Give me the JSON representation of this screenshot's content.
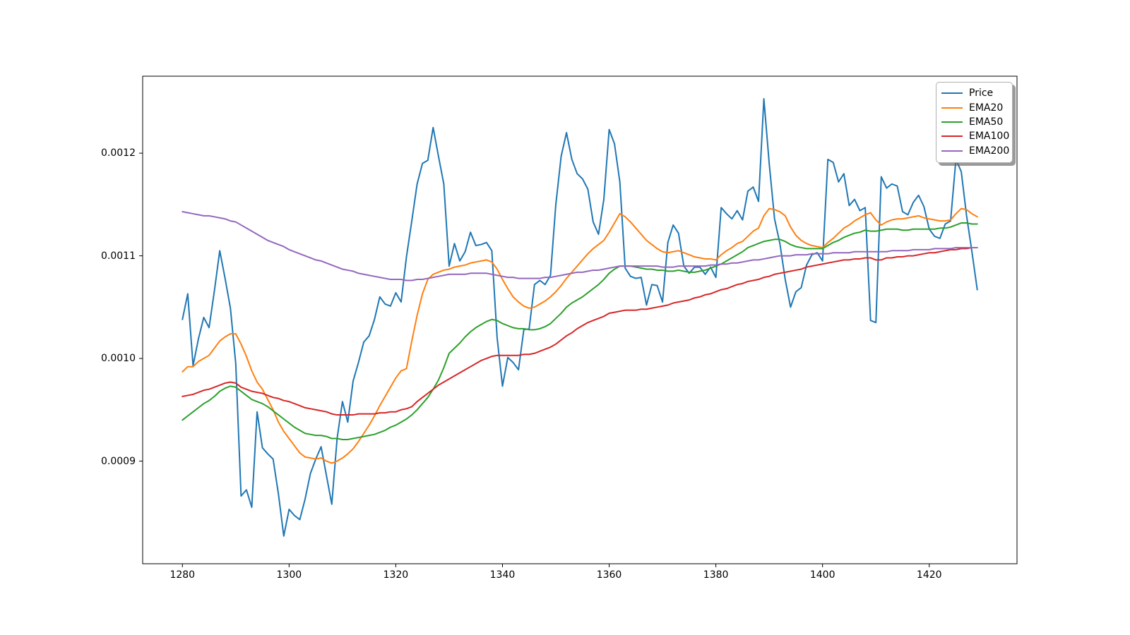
{
  "figure": {
    "background": "#ffffff",
    "spine_color": "#000000",
    "tick_color": "#000000"
  },
  "legend": {
    "position": "upper right",
    "entries": [
      {
        "label": "Price",
        "color": "#1f77b4"
      },
      {
        "label": "EMA20",
        "color": "#ff7f0e"
      },
      {
        "label": "EMA50",
        "color": "#2ca02c"
      },
      {
        "label": "EMA100",
        "color": "#d62728"
      },
      {
        "label": "EMA200",
        "color": "#9467bd"
      }
    ]
  },
  "chart_data": {
    "type": "line",
    "title": "",
    "xlabel": "",
    "ylabel": "",
    "grid": false,
    "x_start": 1280,
    "x_step": 1,
    "xlim": [
      1272.55,
      1436.45
    ],
    "ylim": [
      0.0008,
      0.001275
    ],
    "x_ticks": [
      1280,
      1300,
      1320,
      1340,
      1360,
      1380,
      1400,
      1420
    ],
    "y_ticks": [
      {
        "value": 0.0009,
        "label": "0.0009"
      },
      {
        "value": 0.001,
        "label": "0.0010"
      },
      {
        "value": 0.0011,
        "label": "0.0011"
      },
      {
        "value": 0.0012,
        "label": "0.0012"
      }
    ],
    "series": [
      {
        "name": "Price",
        "color": "#1f77b4",
        "values": [
          0.001038,
          0.001063,
          0.000993,
          0.001019,
          0.00104,
          0.00103,
          0.001066,
          0.001105,
          0.001078,
          0.001049,
          0.000995,
          0.000866,
          0.000872,
          0.000855,
          0.000948,
          0.000913,
          0.000907,
          0.000902,
          0.000868,
          0.000827,
          0.000853,
          0.000847,
          0.000843,
          0.000863,
          0.000888,
          0.000902,
          0.000914,
          0.000886,
          0.000858,
          0.000922,
          0.000958,
          0.000938,
          0.000978,
          0.000996,
          0.001016,
          0.001022,
          0.001038,
          0.00106,
          0.001053,
          0.001051,
          0.001064,
          0.001055,
          0.001099,
          0.001134,
          0.00117,
          0.00119,
          0.001193,
          0.001225,
          0.001197,
          0.00117,
          0.00109,
          0.001112,
          0.001095,
          0.001104,
          0.001123,
          0.00111,
          0.001111,
          0.001113,
          0.001105,
          0.00102,
          0.000973,
          0.001001,
          0.000996,
          0.000989,
          0.001028,
          0.001029,
          0.001072,
          0.001076,
          0.001072,
          0.001081,
          0.00115,
          0.001197,
          0.00122,
          0.001194,
          0.00118,
          0.001175,
          0.001165,
          0.001133,
          0.001121,
          0.001155,
          0.001223,
          0.001209,
          0.001172,
          0.001088,
          0.00108,
          0.001078,
          0.001079,
          0.001052,
          0.001072,
          0.001071,
          0.001055,
          0.001113,
          0.00113,
          0.001122,
          0.00109,
          0.001083,
          0.001089,
          0.001089,
          0.001082,
          0.001089,
          0.001079,
          0.001147,
          0.001141,
          0.001136,
          0.001144,
          0.001135,
          0.001163,
          0.001167,
          0.001153,
          0.001253,
          0.00119,
          0.001136,
          0.001112,
          0.001077,
          0.00105,
          0.001065,
          0.001069,
          0.001091,
          0.001101,
          0.001103,
          0.001095,
          0.001194,
          0.001191,
          0.001172,
          0.00118,
          0.001149,
          0.001155,
          0.001144,
          0.001147,
          0.001037,
          0.001035,
          0.001177,
          0.001166,
          0.00117,
          0.001168,
          0.001143,
          0.00114,
          0.001152,
          0.001159,
          0.001148,
          0.001126,
          0.001119,
          0.001117,
          0.001131,
          0.001134,
          0.001194,
          0.001182,
          0.001139,
          0.001104,
          0.001067
        ]
      },
      {
        "name": "EMA20",
        "color": "#ff7f0e",
        "values": [
          0.000987,
          0.000992,
          0.000992,
          0.000997,
          0.001,
          0.001003,
          0.00101,
          0.001017,
          0.001021,
          0.001024,
          0.001024,
          0.001014,
          0.001002,
          0.000988,
          0.000977,
          0.00097,
          0.00096,
          0.00095,
          0.000938,
          0.000929,
          0.000922,
          0.000915,
          0.000908,
          0.000904,
          0.000903,
          0.000902,
          0.000903,
          0.0009,
          0.000898,
          0.0009,
          0.000903,
          0.000907,
          0.000912,
          0.000919,
          0.000927,
          0.000935,
          0.000944,
          0.000954,
          0.000963,
          0.000972,
          0.000981,
          0.000988,
          0.00099,
          0.001017,
          0.001042,
          0.001063,
          0.001077,
          0.001082,
          0.001084,
          0.001086,
          0.001087,
          0.001089,
          0.00109,
          0.001091,
          0.001093,
          0.001094,
          0.001095,
          0.001096,
          0.001094,
          0.001087,
          0.001077,
          0.001068,
          0.00106,
          0.001055,
          0.001051,
          0.001049,
          0.00105,
          0.001053,
          0.001056,
          0.00106,
          0.001065,
          0.001071,
          0.001078,
          0.001084,
          0.00109,
          0.001096,
          0.001102,
          0.001107,
          0.001111,
          0.001115,
          0.001123,
          0.001132,
          0.001141,
          0.001138,
          0.001133,
          0.001127,
          0.001121,
          0.001115,
          0.001111,
          0.001107,
          0.001104,
          0.001103,
          0.001104,
          0.001105,
          0.001103,
          0.001101,
          0.001099,
          0.001098,
          0.001097,
          0.001097,
          0.001096,
          0.001101,
          0.001105,
          0.001108,
          0.001112,
          0.001114,
          0.001119,
          0.001124,
          0.001127,
          0.001139,
          0.001146,
          0.001145,
          0.001143,
          0.001139,
          0.001128,
          0.00112,
          0.001115,
          0.001112,
          0.00111,
          0.001109,
          0.001108,
          0.001113,
          0.001117,
          0.001122,
          0.001127,
          0.00113,
          0.001134,
          0.001137,
          0.00114,
          0.001142,
          0.001135,
          0.00113,
          0.001133,
          0.001135,
          0.001136,
          0.001136,
          0.001137,
          0.001138,
          0.001139,
          0.001137,
          0.001136,
          0.001135,
          0.001134,
          0.001134,
          0.001135,
          0.001141,
          0.001146,
          0.001145,
          0.001141,
          0.001138
        ]
      },
      {
        "name": "EMA50",
        "color": "#2ca02c",
        "values": [
          0.00094,
          0.000944,
          0.000948,
          0.000952,
          0.000956,
          0.000959,
          0.000963,
          0.000968,
          0.000971,
          0.000973,
          0.000972,
          0.000968,
          0.000964,
          0.00096,
          0.000958,
          0.000956,
          0.000953,
          0.000949,
          0.000945,
          0.000941,
          0.000937,
          0.000933,
          0.00093,
          0.000927,
          0.000926,
          0.000925,
          0.000925,
          0.000924,
          0.000922,
          0.000922,
          0.000921,
          0.000921,
          0.000922,
          0.000923,
          0.000924,
          0.000925,
          0.000926,
          0.000928,
          0.00093,
          0.000933,
          0.000935,
          0.000938,
          0.000941,
          0.000945,
          0.00095,
          0.000956,
          0.000962,
          0.00097,
          0.000979,
          0.000991,
          0.001005,
          0.00101,
          0.001015,
          0.001021,
          0.001026,
          0.00103,
          0.001033,
          0.001036,
          0.001038,
          0.001037,
          0.001034,
          0.001032,
          0.00103,
          0.001029,
          0.001029,
          0.001028,
          0.001028,
          0.001029,
          0.001031,
          0.001034,
          0.001039,
          0.001044,
          0.00105,
          0.001054,
          0.001057,
          0.00106,
          0.001064,
          0.001068,
          0.001072,
          0.001077,
          0.001083,
          0.001087,
          0.00109,
          0.00109,
          0.00109,
          0.001089,
          0.001088,
          0.001087,
          0.001087,
          0.001086,
          0.001086,
          0.001085,
          0.001085,
          0.001086,
          0.001085,
          0.001084,
          0.001084,
          0.001085,
          0.001086,
          0.001088,
          0.00109,
          0.001092,
          0.001095,
          0.001098,
          0.001101,
          0.001104,
          0.001108,
          0.00111,
          0.001112,
          0.001114,
          0.001115,
          0.001116,
          0.001116,
          0.001114,
          0.001111,
          0.001109,
          0.001108,
          0.001107,
          0.001107,
          0.001107,
          0.001107,
          0.00111,
          0.001113,
          0.001115,
          0.001118,
          0.00112,
          0.001122,
          0.001123,
          0.001125,
          0.001124,
          0.001124,
          0.001125,
          0.001126,
          0.001126,
          0.001126,
          0.001125,
          0.001125,
          0.001126,
          0.001126,
          0.001126,
          0.001126,
          0.001126,
          0.001127,
          0.001127,
          0.001128,
          0.00113,
          0.001132,
          0.001132,
          0.001131,
          0.001131
        ]
      },
      {
        "name": "EMA100",
        "color": "#d62728",
        "values": [
          0.000963,
          0.000964,
          0.000965,
          0.000967,
          0.000969,
          0.00097,
          0.000972,
          0.000974,
          0.000976,
          0.000977,
          0.000976,
          0.000972,
          0.00097,
          0.000968,
          0.000967,
          0.000966,
          0.000964,
          0.000962,
          0.000961,
          0.000959,
          0.000958,
          0.000956,
          0.000954,
          0.000952,
          0.000951,
          0.00095,
          0.000949,
          0.000948,
          0.000946,
          0.000945,
          0.000945,
          0.000945,
          0.000945,
          0.000946,
          0.000946,
          0.000946,
          0.000946,
          0.000947,
          0.000947,
          0.000948,
          0.000948,
          0.00095,
          0.000951,
          0.000953,
          0.000958,
          0.000962,
          0.000966,
          0.00097,
          0.000974,
          0.000977,
          0.00098,
          0.000983,
          0.000986,
          0.000989,
          0.000992,
          0.000995,
          0.000998,
          0.001,
          0.001002,
          0.001003,
          0.001003,
          0.001003,
          0.001003,
          0.001003,
          0.001004,
          0.001004,
          0.001005,
          0.001007,
          0.001009,
          0.001011,
          0.001014,
          0.001018,
          0.001022,
          0.001025,
          0.001029,
          0.001032,
          0.001035,
          0.001037,
          0.001039,
          0.001041,
          0.001044,
          0.001045,
          0.001046,
          0.001047,
          0.001047,
          0.001047,
          0.001048,
          0.001048,
          0.001049,
          0.00105,
          0.001051,
          0.001052,
          0.001054,
          0.001055,
          0.001056,
          0.001057,
          0.001059,
          0.00106,
          0.001062,
          0.001063,
          0.001065,
          0.001067,
          0.001068,
          0.00107,
          0.001072,
          0.001073,
          0.001075,
          0.001076,
          0.001077,
          0.001079,
          0.00108,
          0.001082,
          0.001083,
          0.001084,
          0.001085,
          0.001086,
          0.001087,
          0.001089,
          0.00109,
          0.001091,
          0.001092,
          0.001093,
          0.001094,
          0.001095,
          0.001096,
          0.001096,
          0.001097,
          0.001097,
          0.001098,
          0.001098,
          0.001096,
          0.001096,
          0.001098,
          0.001098,
          0.001099,
          0.001099,
          0.0011,
          0.0011,
          0.001101,
          0.001102,
          0.001103,
          0.001103,
          0.001104,
          0.001105,
          0.001106,
          0.001106,
          0.001107,
          0.001107,
          0.001108,
          0.001108
        ]
      },
      {
        "name": "EMA200",
        "color": "#9467bd",
        "values": [
          0.001143,
          0.001142,
          0.001141,
          0.00114,
          0.001139,
          0.001139,
          0.001138,
          0.001137,
          0.001136,
          0.001134,
          0.001133,
          0.00113,
          0.001127,
          0.001124,
          0.001121,
          0.001118,
          0.001115,
          0.001113,
          0.001111,
          0.001109,
          0.001106,
          0.001104,
          0.001102,
          0.0011,
          0.001098,
          0.001096,
          0.001095,
          0.001093,
          0.001091,
          0.001089,
          0.001087,
          0.001086,
          0.001085,
          0.001083,
          0.001082,
          0.001081,
          0.00108,
          0.001079,
          0.001078,
          0.001077,
          0.001077,
          0.001077,
          0.001076,
          0.001076,
          0.001077,
          0.001077,
          0.001078,
          0.001079,
          0.00108,
          0.001081,
          0.001082,
          0.001082,
          0.001082,
          0.001082,
          0.001083,
          0.001083,
          0.001083,
          0.001083,
          0.001082,
          0.001081,
          0.00108,
          0.001079,
          0.001079,
          0.001078,
          0.001078,
          0.001078,
          0.001078,
          0.001078,
          0.001079,
          0.001079,
          0.00108,
          0.001081,
          0.001082,
          0.001083,
          0.001084,
          0.001084,
          0.001085,
          0.001086,
          0.001086,
          0.001087,
          0.001088,
          0.001089,
          0.00109,
          0.00109,
          0.00109,
          0.00109,
          0.00109,
          0.00109,
          0.00109,
          0.00109,
          0.001089,
          0.001089,
          0.001089,
          0.00109,
          0.00109,
          0.00109,
          0.00109,
          0.00109,
          0.00109,
          0.001091,
          0.001091,
          0.001092,
          0.001092,
          0.001093,
          0.001093,
          0.001094,
          0.001095,
          0.001096,
          0.001096,
          0.001097,
          0.001098,
          0.001099,
          0.0011,
          0.0011,
          0.0011,
          0.001101,
          0.001101,
          0.001101,
          0.001102,
          0.001102,
          0.001102,
          0.001102,
          0.001103,
          0.001103,
          0.001103,
          0.001103,
          0.001104,
          0.001104,
          0.001104,
          0.001104,
          0.001104,
          0.001104,
          0.001104,
          0.001105,
          0.001105,
          0.001105,
          0.001105,
          0.001106,
          0.001106,
          0.001106,
          0.001106,
          0.001107,
          0.001107,
          0.001107,
          0.001107,
          0.001108,
          0.001108,
          0.001108,
          0.001108,
          0.001108
        ]
      }
    ]
  }
}
